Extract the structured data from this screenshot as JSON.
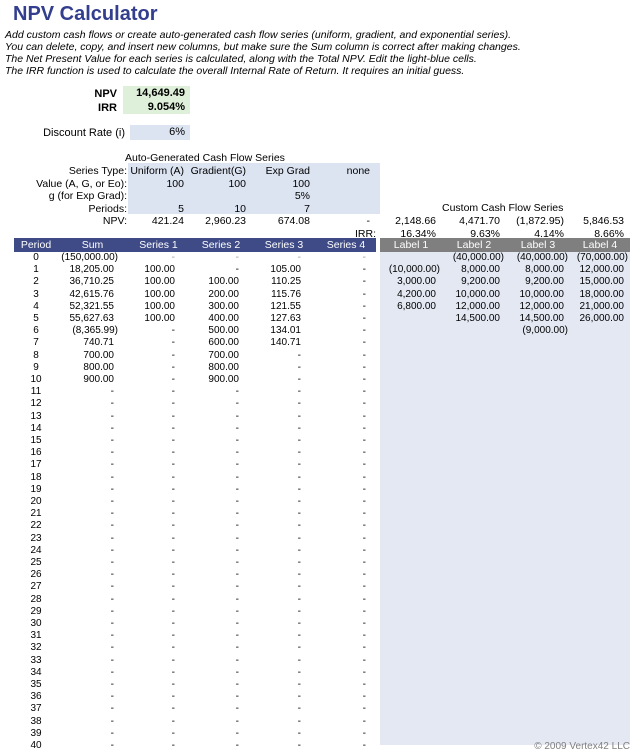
{
  "page": {
    "title": "NPV Calculator",
    "description_lines": [
      "Add custom cash flows or create auto-generated cash flow series (uniform, gradient, and exponential series).",
      "You can delete, copy, and insert new columns, but make sure the Sum column is correct after making changes.",
      "The Net Present Value for each series is calculated, along with the Total NPV. Edit the light-blue cells.",
      "The IRR function is used to calculate the overall Internal Rate of Return. It requires an initial guess."
    ],
    "copyright": "© 2009 Vertex42 LLC"
  },
  "summary": {
    "npv_label": "NPV",
    "npv_value": "14,649.49",
    "irr_label": "IRR",
    "irr_value": "9.054%",
    "discount_label": "Discount Rate (i)",
    "discount_value": "6%"
  },
  "auto_series": {
    "title": "Auto-Generated Cash Flow Series",
    "rows": [
      {
        "label": "Series Type:",
        "values": [
          "Uniform (A)",
          "Gradient(G)",
          "Exp Grad",
          "none"
        ]
      },
      {
        "label": "Value (A, G, or Eo):",
        "values": [
          "100",
          "100",
          "100",
          ""
        ]
      },
      {
        "label": "g (for Exp Grad):",
        "values": [
          "",
          "",
          "5%",
          ""
        ]
      },
      {
        "label": "Periods:",
        "values": [
          "5",
          "10",
          "7",
          ""
        ]
      }
    ],
    "npv_row": {
      "label": "NPV:",
      "values": [
        "421.24",
        "2,960.23",
        "674.08",
        "-"
      ]
    }
  },
  "custom_series": {
    "title": "Custom Cash Flow Series",
    "npv_values": [
      "2,148.66",
      "4,471.70",
      "(1,872.95)",
      "5,846.53"
    ],
    "irr_label": "IRR:",
    "irr_values": [
      "16.34%",
      "9.63%",
      "4.14%",
      "8.66%"
    ]
  },
  "table": {
    "headers": [
      "Period",
      "Sum",
      "Series 1",
      "Series 2",
      "Series 3",
      "Series 4",
      "Label 1",
      "Label 2",
      "Label 3",
      "Label 4"
    ],
    "rows": [
      [
        "0",
        "(150,000.00)",
        "-",
        "-",
        "-",
        "-",
        "",
        "(40,000.00)",
        "(40,000.00)",
        "(70,000.00)"
      ],
      [
        "1",
        "18,205.00",
        "100.00",
        "-",
        "105.00",
        "-",
        "(10,000.00)",
        "8,000.00",
        "8,000.00",
        "12,000.00"
      ],
      [
        "2",
        "36,710.25",
        "100.00",
        "100.00",
        "110.25",
        "-",
        "3,000.00",
        "9,200.00",
        "9,200.00",
        "15,000.00"
      ],
      [
        "3",
        "42,615.76",
        "100.00",
        "200.00",
        "115.76",
        "-",
        "4,200.00",
        "10,000.00",
        "10,000.00",
        "18,000.00"
      ],
      [
        "4",
        "52,321.55",
        "100.00",
        "300.00",
        "121.55",
        "-",
        "6,800.00",
        "12,000.00",
        "12,000.00",
        "21,000.00"
      ],
      [
        "5",
        "55,627.63",
        "100.00",
        "400.00",
        "127.63",
        "-",
        "",
        "14,500.00",
        "14,500.00",
        "26,000.00"
      ],
      [
        "6",
        "(8,365.99)",
        "-",
        "500.00",
        "134.01",
        "-",
        "",
        "",
        "(9,000.00)",
        ""
      ],
      [
        "7",
        "740.71",
        "-",
        "600.00",
        "140.71",
        "-",
        "",
        "",
        "",
        ""
      ],
      [
        "8",
        "700.00",
        "-",
        "700.00",
        "-",
        "-",
        "",
        "",
        "",
        ""
      ],
      [
        "9",
        "800.00",
        "-",
        "800.00",
        "-",
        "-",
        "",
        "",
        "",
        ""
      ],
      [
        "10",
        "900.00",
        "-",
        "900.00",
        "-",
        "-",
        "",
        "",
        "",
        ""
      ],
      [
        "11",
        "-",
        "-",
        "-",
        "-",
        "-",
        "",
        "",
        "",
        ""
      ],
      [
        "12",
        "-",
        "-",
        "-",
        "-",
        "-",
        "",
        "",
        "",
        ""
      ],
      [
        "13",
        "-",
        "-",
        "-",
        "-",
        "-",
        "",
        "",
        "",
        ""
      ],
      [
        "14",
        "-",
        "-",
        "-",
        "-",
        "-",
        "",
        "",
        "",
        ""
      ],
      [
        "15",
        "-",
        "-",
        "-",
        "-",
        "-",
        "",
        "",
        "",
        ""
      ],
      [
        "16",
        "-",
        "-",
        "-",
        "-",
        "-",
        "",
        "",
        "",
        ""
      ],
      [
        "17",
        "-",
        "-",
        "-",
        "-",
        "-",
        "",
        "",
        "",
        ""
      ],
      [
        "18",
        "-",
        "-",
        "-",
        "-",
        "-",
        "",
        "",
        "",
        ""
      ],
      [
        "19",
        "-",
        "-",
        "-",
        "-",
        "-",
        "",
        "",
        "",
        ""
      ],
      [
        "20",
        "-",
        "-",
        "-",
        "-",
        "-",
        "",
        "",
        "",
        ""
      ],
      [
        "21",
        "-",
        "-",
        "-",
        "-",
        "-",
        "",
        "",
        "",
        ""
      ],
      [
        "22",
        "-",
        "-",
        "-",
        "-",
        "-",
        "",
        "",
        "",
        ""
      ],
      [
        "23",
        "-",
        "-",
        "-",
        "-",
        "-",
        "",
        "",
        "",
        ""
      ],
      [
        "24",
        "-",
        "-",
        "-",
        "-",
        "-",
        "",
        "",
        "",
        ""
      ],
      [
        "25",
        "-",
        "-",
        "-",
        "-",
        "-",
        "",
        "",
        "",
        ""
      ],
      [
        "26",
        "-",
        "-",
        "-",
        "-",
        "-",
        "",
        "",
        "",
        ""
      ],
      [
        "27",
        "-",
        "-",
        "-",
        "-",
        "-",
        "",
        "",
        "",
        ""
      ],
      [
        "28",
        "-",
        "-",
        "-",
        "-",
        "-",
        "",
        "",
        "",
        ""
      ],
      [
        "29",
        "-",
        "-",
        "-",
        "-",
        "-",
        "",
        "",
        "",
        ""
      ],
      [
        "30",
        "-",
        "-",
        "-",
        "-",
        "-",
        "",
        "",
        "",
        ""
      ],
      [
        "31",
        "-",
        "-",
        "-",
        "-",
        "-",
        "",
        "",
        "",
        ""
      ],
      [
        "32",
        "-",
        "-",
        "-",
        "-",
        "-",
        "",
        "",
        "",
        ""
      ],
      [
        "33",
        "-",
        "-",
        "-",
        "-",
        "-",
        "",
        "",
        "",
        ""
      ],
      [
        "34",
        "-",
        "-",
        "-",
        "-",
        "-",
        "",
        "",
        "",
        ""
      ],
      [
        "35",
        "-",
        "-",
        "-",
        "-",
        "-",
        "",
        "",
        "",
        ""
      ],
      [
        "36",
        "-",
        "-",
        "-",
        "-",
        "-",
        "",
        "",
        "",
        ""
      ],
      [
        "37",
        "-",
        "-",
        "-",
        "-",
        "-",
        "",
        "",
        "",
        ""
      ],
      [
        "38",
        "-",
        "-",
        "-",
        "-",
        "-",
        "",
        "",
        "",
        ""
      ],
      [
        "39",
        "-",
        "-",
        "-",
        "-",
        "-",
        "",
        "",
        "",
        ""
      ],
      [
        "40",
        "-",
        "-",
        "-",
        "-",
        "-",
        "",
        "",
        "",
        ""
      ]
    ]
  },
  "colors": {
    "title_blue": "#333E8F",
    "header_navy": "#3E4B87",
    "header_gray": "#7F7F7F",
    "result_green": "#DFF0DA",
    "input_blue": "#DCE3F1",
    "panel_lavender": "#E3E8F3",
    "muted_gray": "#808080"
  }
}
